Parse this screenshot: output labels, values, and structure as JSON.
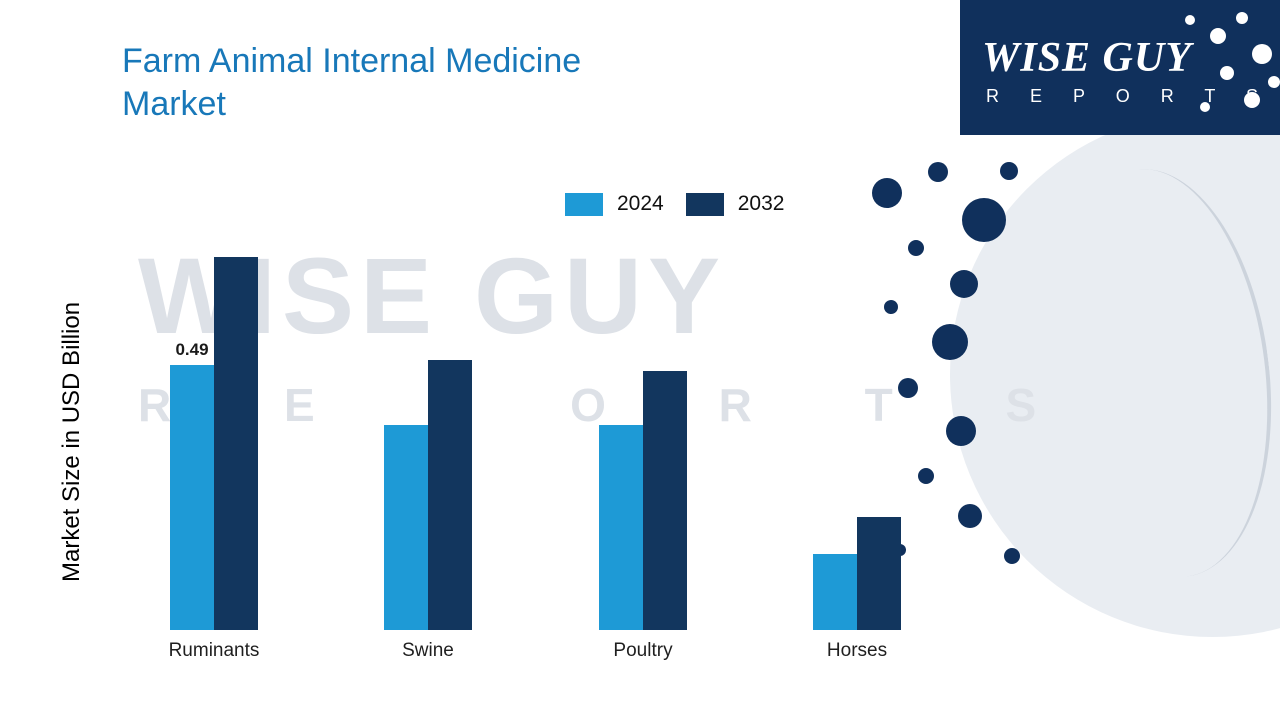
{
  "header": {
    "title_line1": "Farm Animal Internal Medicine",
    "title_line2": "Market"
  },
  "logo": {
    "line1": "WISE GUY",
    "line2": "R E P O R T S"
  },
  "watermark": {
    "line1": "WISE GUY",
    "line2": "R E P O R T S"
  },
  "colors": {
    "title_blue": "#1878b9",
    "series_2024_blue": "#1e9ad6",
    "series_2032_navy": "#12365e",
    "corner_navy": "#10305c",
    "circle_gray": "#e9edf2",
    "watermark_gray": "#dde1e7"
  },
  "chart_data": {
    "type": "bar",
    "title": "Farm Animal Internal Medicine Market",
    "categories": [
      "Ruminants",
      "Swine",
      "Poultry",
      "Horses"
    ],
    "series": [
      {
        "name": "2024",
        "color": "#1e9ad6",
        "values": [
          0.49,
          0.38,
          0.38,
          0.14
        ]
      },
      {
        "name": "2032",
        "color": "#12365e",
        "values": [
          0.69,
          0.5,
          0.48,
          0.21
        ]
      }
    ],
    "ylabel": "Market Size in USD Billion",
    "xlabel": "",
    "ylim": [
      0,
      0.8
    ],
    "grid": false,
    "legend_position": "top-center",
    "value_label": {
      "text": "0.49",
      "category": "Ruminants",
      "series": "2024"
    }
  }
}
